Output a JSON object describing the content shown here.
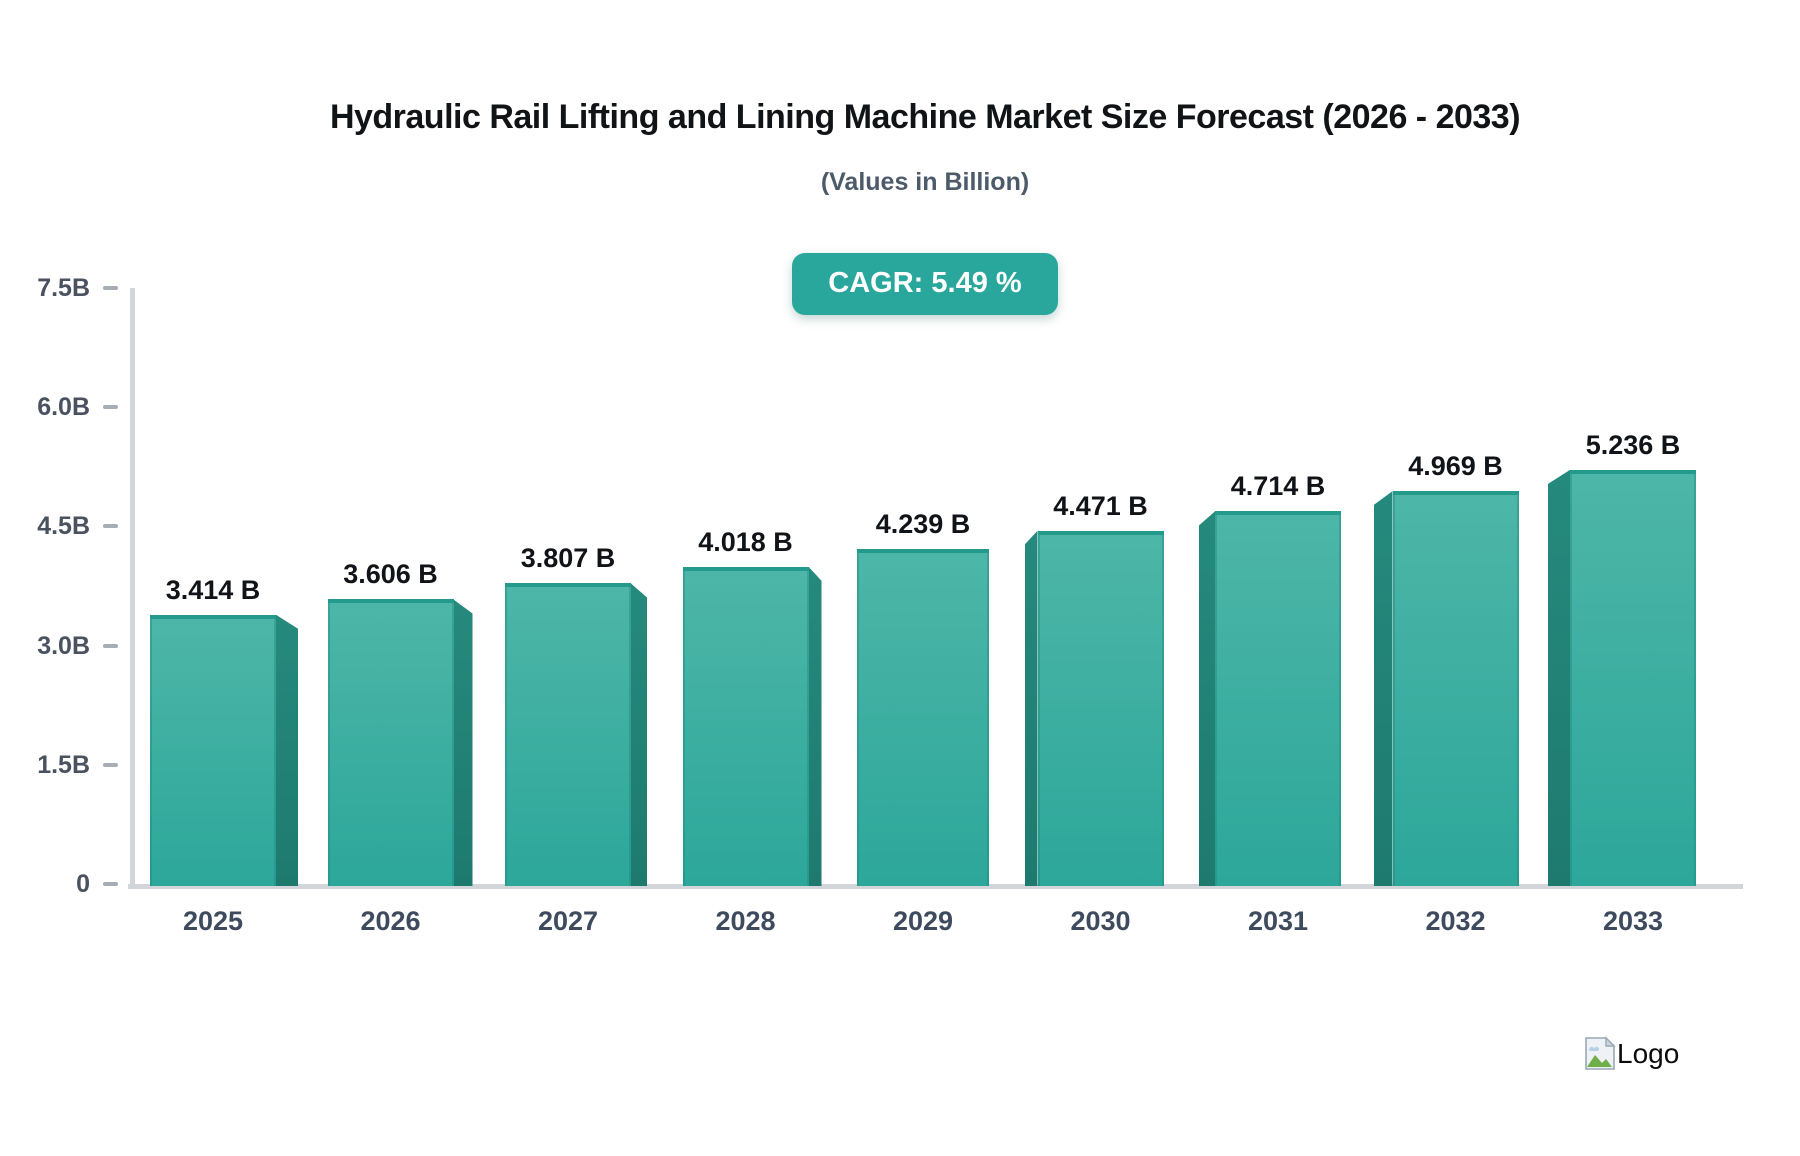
{
  "header": {
    "title": "Hydraulic Rail Lifting and Lining Machine Market Size Forecast (2026 - 2033)",
    "subtitle": "(Values in Billion)"
  },
  "badge": {
    "label": "CAGR: 5.49 %"
  },
  "logo": {
    "alt": "Logo"
  },
  "chart_data": {
    "type": "bar",
    "title": "Hydraulic Rail Lifting and Lining Machine Market Size Forecast (2026 - 2033)",
    "subtitle": "(Values in Billion)",
    "categories": [
      "2025",
      "2026",
      "2027",
      "2028",
      "2029",
      "2030",
      "2031",
      "2032",
      "2033"
    ],
    "values": [
      3.414,
      3.606,
      3.807,
      4.018,
      4.239,
      4.471,
      4.714,
      4.969,
      5.236
    ],
    "value_labels": [
      "3.414 B",
      "3.606 B",
      "3.807 B",
      "4.018 B",
      "4.239 B",
      "4.471 B",
      "4.714 B",
      "4.969 B",
      "5.236 B"
    ],
    "cagr": "5.49 %",
    "xlabel": "",
    "ylabel": "",
    "ylim": [
      0,
      7.5
    ],
    "grid": false,
    "legend": "none",
    "y_axis": {
      "ticks": [
        {
          "value": 0,
          "label": "0"
        },
        {
          "value": 1.5,
          "label": "1.5B"
        },
        {
          "value": 3.0,
          "label": "3.0B"
        },
        {
          "value": 4.5,
          "label": "4.5B"
        },
        {
          "value": 6.0,
          "label": "6.0B"
        },
        {
          "value": 7.5,
          "label": "7.5B"
        }
      ]
    },
    "colors": {
      "face_top": "#4db6a8",
      "face_bottom": "#2ca79a",
      "face_edge": "#249a8d",
      "side_top": "#258a7d",
      "side_bottom": "#1e7a6e",
      "axis": "#d2d6da",
      "tick_dash": "#a7adb5",
      "badge_bg": "#2aa79c",
      "badge_text": "#ffffff"
    }
  }
}
